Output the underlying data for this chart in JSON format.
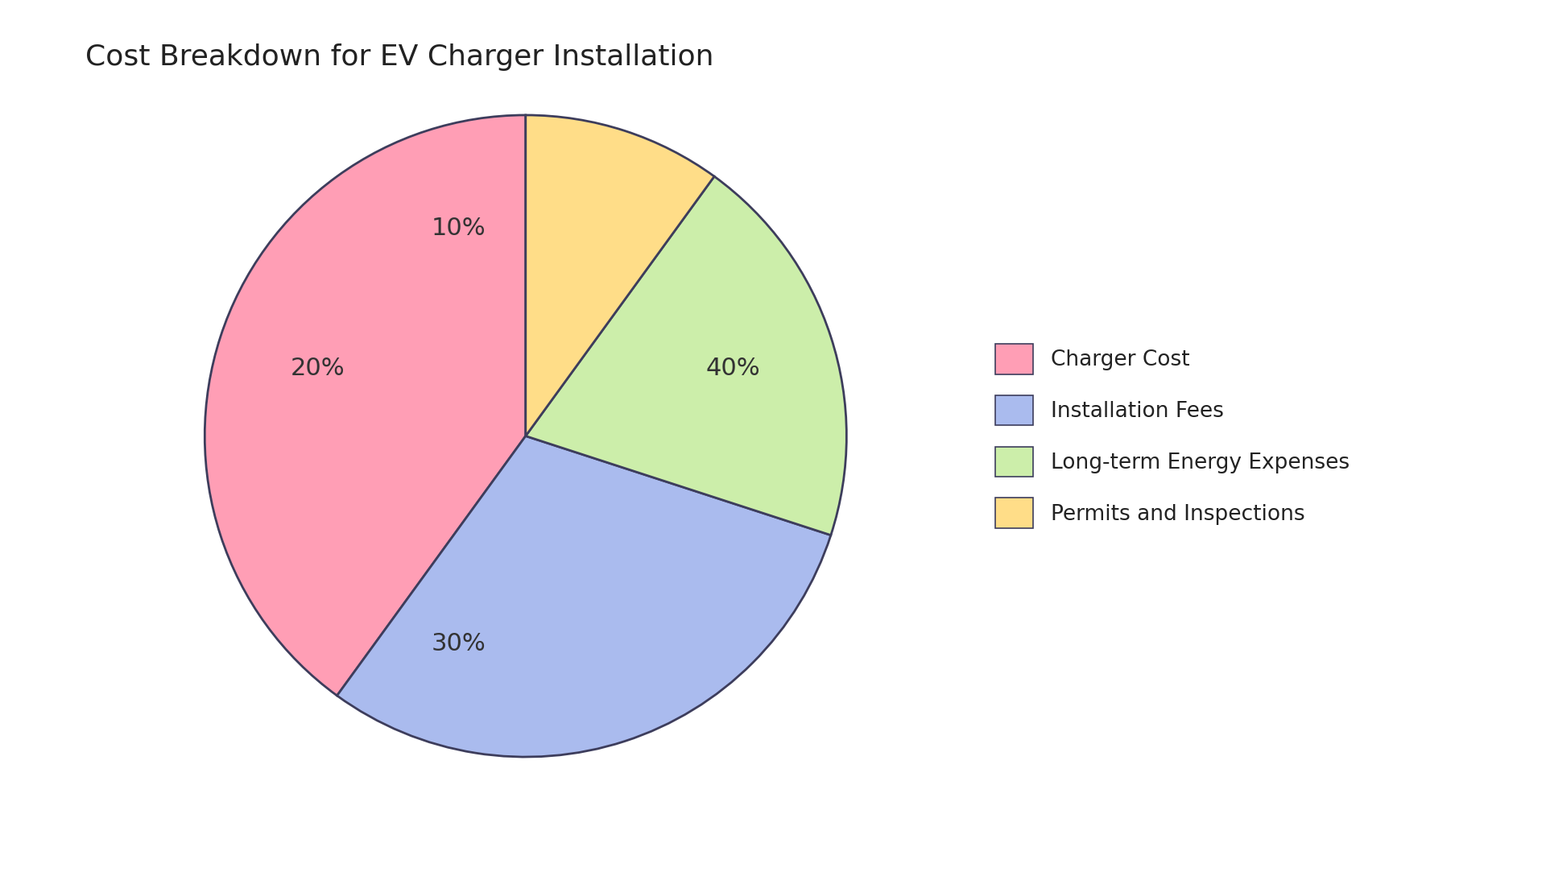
{
  "title": "Cost Breakdown for EV Charger Installation",
  "title_fontsize": 26,
  "labels": [
    "Charger Cost",
    "Installation Fees",
    "Long-term Energy Expenses",
    "Permits and Inspections"
  ],
  "values": [
    40,
    30,
    20,
    10
  ],
  "pct_labels": [
    "40%",
    "30%",
    "20%",
    "10%"
  ],
  "colors": [
    "#FF9EB5",
    "#AABBEE",
    "#CCEEAA",
    "#FFDD88"
  ],
  "edge_color": "#3d3d5c",
  "edge_width": 2.0,
  "background_color": "#FFFFFF",
  "legend_fontsize": 19,
  "pct_fontsize": 22,
  "pct_color": "#333333",
  "startangle": 90,
  "pct_distance": 0.68
}
